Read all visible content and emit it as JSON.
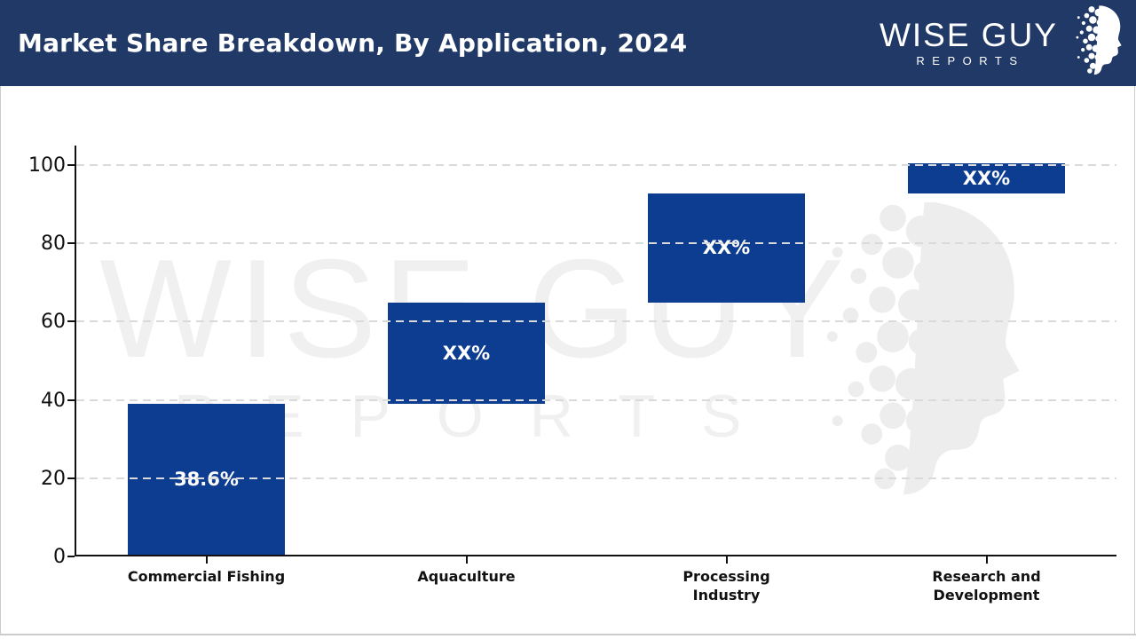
{
  "header": {
    "title": "Market Share Breakdown, By Application, 2024",
    "logo": {
      "line1": "WISE GUY",
      "line2": "REPORTS",
      "icon": "dotted-head-icon"
    }
  },
  "watermark": {
    "line1": "WISE GUY",
    "line2": "REPORTS",
    "icon": "dotted-head-icon"
  },
  "chart_data": {
    "type": "waterfall",
    "title": "Market Share Breakdown, By Application, 2024",
    "categories": [
      "Commercial Fishing",
      "Aquaculture",
      "Processing Industry",
      "Research and Development"
    ],
    "category_lines": [
      [
        "Commercial Fishing"
      ],
      [
        "Aquaculture"
      ],
      [
        "Processing",
        "Industry"
      ],
      [
        "Research and",
        "Development"
      ]
    ],
    "segments": [
      {
        "label": "Commercial Fishing",
        "start": 0,
        "end": 38.6,
        "size": 38.6,
        "value_label": "38.6%"
      },
      {
        "label": "Aquaculture",
        "start": 38.6,
        "end": 64.4,
        "size": 25.8,
        "value_label": "XX%"
      },
      {
        "label": "Processing Industry",
        "start": 64.4,
        "end": 92.4,
        "size": 28.0,
        "value_label": "XX%"
      },
      {
        "label": "Research and Development",
        "start": 92.4,
        "end": 100.0,
        "size": 7.6,
        "value_label": "XX%"
      }
    ],
    "y_ticks": [
      0,
      20,
      40,
      60,
      80,
      100
    ],
    "y_tick_labels": [
      "0",
      "20",
      "40",
      "60",
      "80",
      "100"
    ],
    "ylim": [
      0,
      105
    ],
    "grid": "horizontal dashed, drawn over bars",
    "legend": "none",
    "bar_color": "#0c3d91",
    "value_label_color": "#ffffff"
  },
  "colors": {
    "header_bg": "#213966",
    "bar": "#0c3d91",
    "axis": "#111111",
    "grid": "#dadada",
    "watermark": "#f0f0f0",
    "frame_line": "#cccccc",
    "title_text": "#ffffff"
  }
}
